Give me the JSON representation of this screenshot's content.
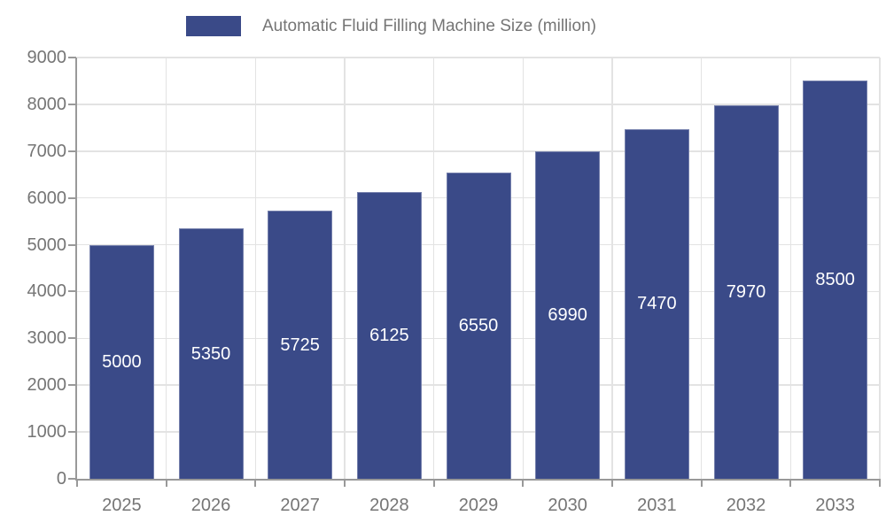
{
  "chart_data": {
    "type": "bar",
    "title": "Automatic Fluid Filling Machine Size (million)",
    "legend": [
      "Automatic Fluid Filling Machine Size (million)"
    ],
    "legend_position": "top",
    "categories": [
      "2025",
      "2026",
      "2027",
      "2028",
      "2029",
      "2030",
      "2031",
      "2032",
      "2033"
    ],
    "values": [
      5000,
      5350,
      5725,
      6125,
      6550,
      6990,
      7470,
      7970,
      8500
    ],
    "value_labels": [
      "5000",
      "5350",
      "5725",
      "6125",
      "6550",
      "6990",
      "7470",
      "7970",
      "8500"
    ],
    "xlabel": "",
    "ylabel": "",
    "ylim": [
      0,
      9000
    ],
    "ytick_step": 1000,
    "yticks": [
      0,
      1000,
      2000,
      3000,
      4000,
      5000,
      6000,
      7000,
      8000,
      9000
    ],
    "grid": true,
    "colors": {
      "bar": "#3A4A88",
      "value_label": "#FFFFFF",
      "axis_label": "#757575",
      "legend_text": "#757575",
      "gridline": "#E3E3E3",
      "axis_line": "#999999",
      "background": "#FFFFFF"
    }
  }
}
